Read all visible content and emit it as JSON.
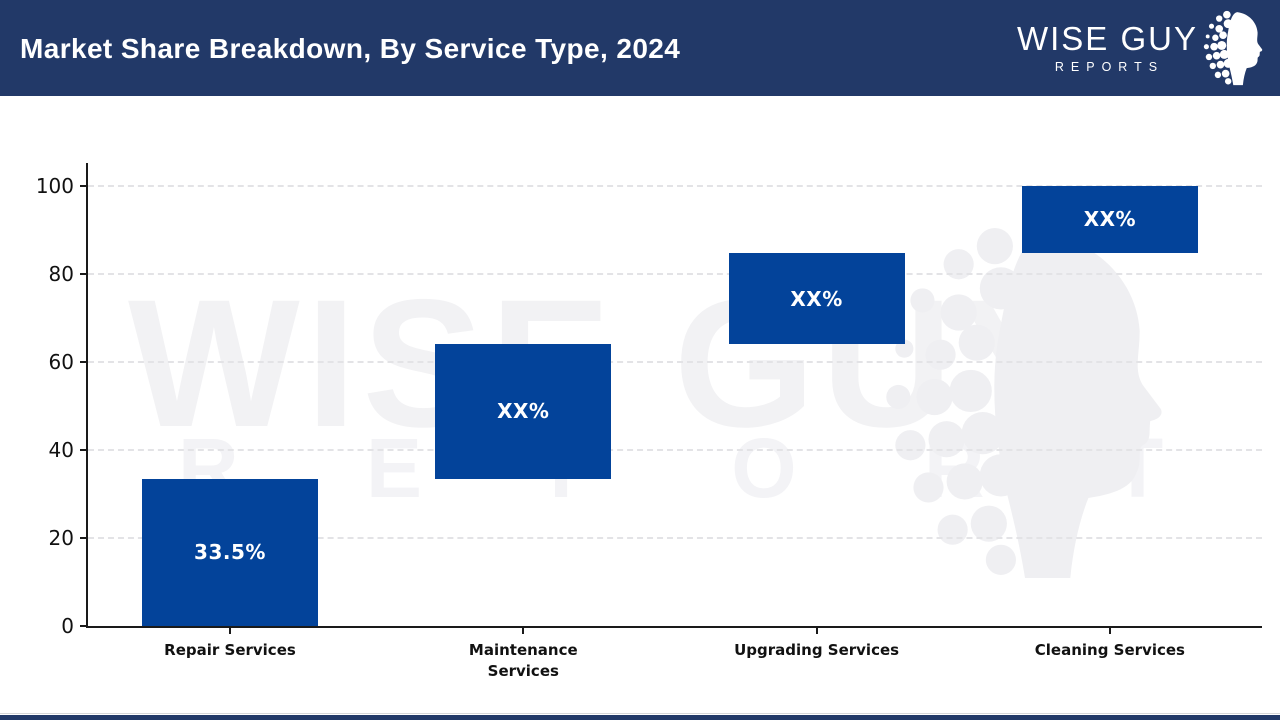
{
  "header": {
    "title": "Market Share Breakdown, By Service Type, 2024",
    "logo": {
      "line1": "WISE GUY",
      "line2": "REPORTS"
    }
  },
  "watermark": {
    "line1": "WISE GUY",
    "line2": "R E P O R T S"
  },
  "chart_data": {
    "type": "bar",
    "subtype": "waterfall",
    "title": "Market Share Breakdown, By Service Type, 2024",
    "categories": [
      "Repair Services",
      "Maintenance Services",
      "Upgrading Services",
      "Cleaning Services"
    ],
    "segments": [
      {
        "category": "Repair Services",
        "category_display": "Repair Services",
        "start": 0,
        "end": 33.5,
        "value": 33.5,
        "data_label": "33.5%"
      },
      {
        "category": "Maintenance Services",
        "category_display": "Maintenance\nServices",
        "start": 33.5,
        "end": 64,
        "value": 30.5,
        "data_label": "XX%"
      },
      {
        "category": "Upgrading Services",
        "category_display": "Upgrading Services",
        "start": 64,
        "end": 84.8,
        "value": 20.8,
        "data_label": "XX%"
      },
      {
        "category": "Cleaning Services",
        "category_display": "Cleaning Services",
        "start": 84.8,
        "end": 100,
        "value": 15.2,
        "data_label": "XX%"
      }
    ],
    "y_ticks": [
      0,
      20,
      40,
      60,
      80,
      100
    ],
    "ylim": [
      0,
      105
    ],
    "xlabel": "",
    "ylabel": "",
    "legend": "none",
    "grid": "horizontal-dashed",
    "bar_color": "#03439a",
    "data_label_color": "#ffffff",
    "axis_color": "#1a1a1a",
    "grid_color": "#e3e3e6",
    "header_color": "#223968"
  }
}
